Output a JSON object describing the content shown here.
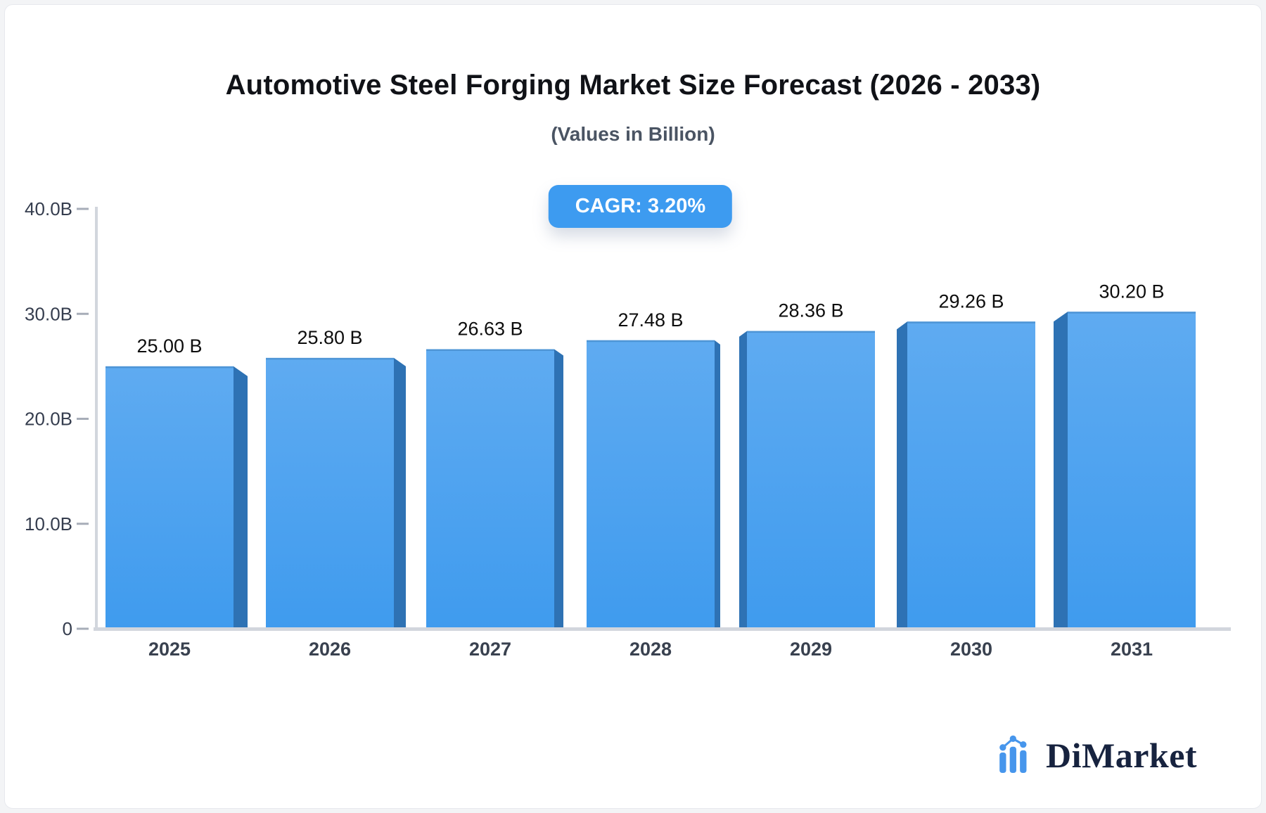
{
  "header": {
    "title": "Automotive Steel Forging Market Size Forecast (2026 - 2033)",
    "subtitle": "(Values in Billion)",
    "badge": "CAGR: 3.20%"
  },
  "chart_data": {
    "type": "bar",
    "categories": [
      "2025",
      "2026",
      "2027",
      "2028",
      "2029",
      "2030",
      "2031"
    ],
    "values": [
      25.0,
      25.8,
      26.63,
      27.48,
      28.36,
      29.26,
      30.2
    ],
    "value_labels": [
      "25.00 B",
      "25.80 B",
      "26.63 B",
      "27.48 B",
      "28.36 B",
      "29.26 B",
      "30.20 B"
    ],
    "title": "Automotive Steel Forging Market Size Forecast (2026 - 2033)",
    "subtitle": "(Values in Billion)",
    "xlabel": "",
    "ylabel": "",
    "ylim": [
      0,
      40
    ],
    "yticks": [
      {
        "value": 0,
        "label": "0"
      },
      {
        "value": 10,
        "label": "10.0B"
      },
      {
        "value": 20,
        "label": "20.0B"
      },
      {
        "value": 30,
        "label": "30.0B"
      },
      {
        "value": 40,
        "label": "40.0B"
      }
    ],
    "grid": false,
    "legend": "none",
    "style": "3d-bars",
    "colors": {
      "bar_face_top": "#5fabf1",
      "bar_face_bottom": "#3f9bee",
      "bar_side": "#2e72b4",
      "bar_top_edge": "#4e95d6",
      "axis": "#d2d6dd",
      "tick_dash": "#a7adb8",
      "y_label": "#353d4e",
      "x_label": "#39414f",
      "value_label": "#0d0d0d",
      "badge_bg": "#3d9bf0",
      "badge_text": "#ffffff"
    }
  },
  "footer": {
    "brand": "DiMarket",
    "brand_icon": "bar-chart-logo-icon",
    "logo_blue": "#4796ec"
  }
}
